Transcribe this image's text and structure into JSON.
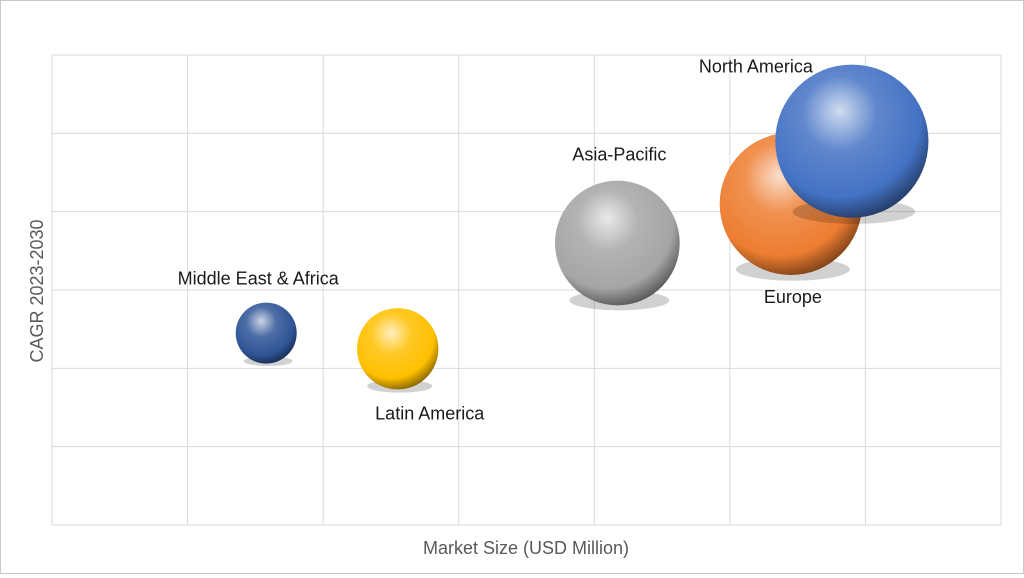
{
  "chart_data": {
    "type": "bubble",
    "title": "",
    "xlabel": "Market Size (USD Million)",
    "ylabel": "CAGR 2023-2030",
    "xlim": [
      0,
      7
    ],
    "ylim": [
      0,
      6
    ],
    "grid": true,
    "series": [
      {
        "name": "Middle East & Africa",
        "x": 1.58,
        "y": 2.45,
        "size": 0.45,
        "color": "#2f5496"
      },
      {
        "name": "Latin America",
        "x": 2.55,
        "y": 2.25,
        "size": 0.6,
        "color": "#ffc000"
      },
      {
        "name": "Asia-Pacific",
        "x": 4.17,
        "y": 3.6,
        "size": 0.92,
        "color": "#a5a5a5"
      },
      {
        "name": "Europe",
        "x": 5.45,
        "y": 4.1,
        "size": 1.05,
        "color": "#ed7d31"
      },
      {
        "name": "North America",
        "x": 5.9,
        "y": 4.9,
        "size": 1.13,
        "color": "#4472c4"
      }
    ]
  }
}
